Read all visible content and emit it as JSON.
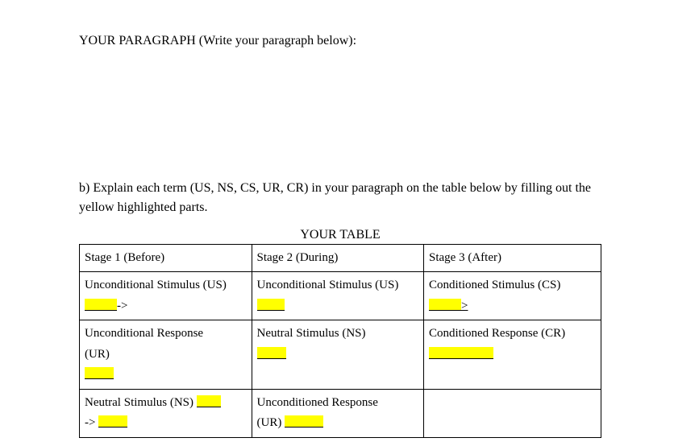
{
  "heading": "YOUR PARAGRAPH (Write your paragraph below):",
  "instruction": "b) Explain each term (US, NS, CS, UR, CR) in your paragraph on the table below by filling out the yellow highlighted parts.",
  "table_title": "YOUR TABLE",
  "colors": {
    "highlight": "#ffff00",
    "border": "#000000",
    "text": "#000000",
    "background": "#ffffff"
  },
  "table": {
    "columns": [
      "Stage 1 (Before)",
      "Stage 2 (During)",
      "Stage 3 (After)"
    ],
    "rows": [
      {
        "c1": {
          "label": "Unconditional Stimulus (US)",
          "blank_after_arrow": true,
          "blank_width": 40,
          "arrow": "->"
        },
        "c2": {
          "label": "Unconditional Stimulus (US)",
          "blank_only": true,
          "blank_width": 34
        },
        "c3": {
          "label": "Conditioned Stimulus (CS)",
          "blank_after_arrow": true,
          "blank_width": 40,
          "arrow": ">",
          "arrow_underline": true
        }
      },
      {
        "c1": {
          "label": "Unconditional Response (UR)",
          "blank_below": true,
          "blank_width": 36
        },
        "c2": {
          "label": "Neutral Stimulus (NS)",
          "blank_below": true,
          "blank_width": 36
        },
        "c3": {
          "label": "Conditioned Response (CR)",
          "blank_below": true,
          "blank_width": 80
        }
      },
      {
        "c1": {
          "label_before_blank": "Neutral Stimulus (NS)",
          "blank_inline_width": 30,
          "second_line_prefix": "->",
          "second_blank_width": 36
        },
        "c2": {
          "label": "Unconditioned Response (UR)",
          "blank_inline_after_width": 48
        },
        "c3": {
          "empty": true
        }
      }
    ]
  }
}
